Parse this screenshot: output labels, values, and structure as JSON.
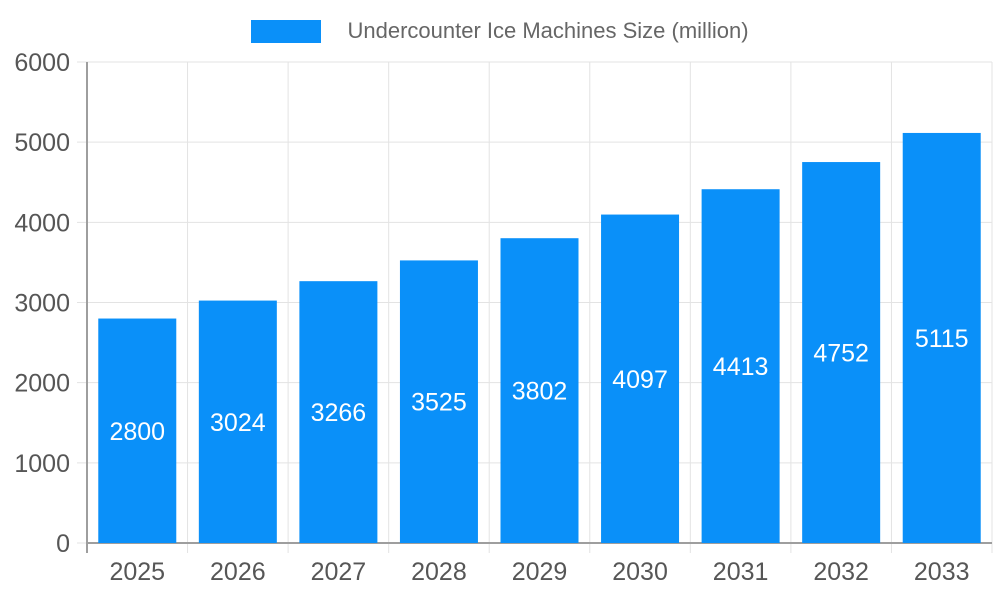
{
  "colors": {
    "bar": "#0a90f9",
    "grid": "#e3e3e3",
    "axis": "#9e9e9e",
    "tick_label": "#565656",
    "legend_text": "#666666",
    "bar_label": "#ffffff",
    "background": "#ffffff"
  },
  "chart_data": {
    "type": "bar",
    "title": "Undercounter Ice Machines Size (million)",
    "categories": [
      "2025",
      "2026",
      "2027",
      "2028",
      "2029",
      "2030",
      "2031",
      "2032",
      "2033"
    ],
    "values": [
      2800,
      3024,
      3266,
      3525,
      3802,
      4097,
      4413,
      4752,
      5115
    ],
    "xlabel": "",
    "ylabel": "",
    "ylim": [
      0,
      6000
    ],
    "ytick_step": 1000,
    "ytick_labels": [
      "0",
      "1000",
      "2000",
      "3000",
      "4000",
      "5000",
      "6000"
    ],
    "grid": true,
    "bar_value_labels": "inside-center",
    "legend": {
      "position": "top",
      "entries": [
        "Undercounter Ice Machines Size (million)"
      ]
    }
  }
}
